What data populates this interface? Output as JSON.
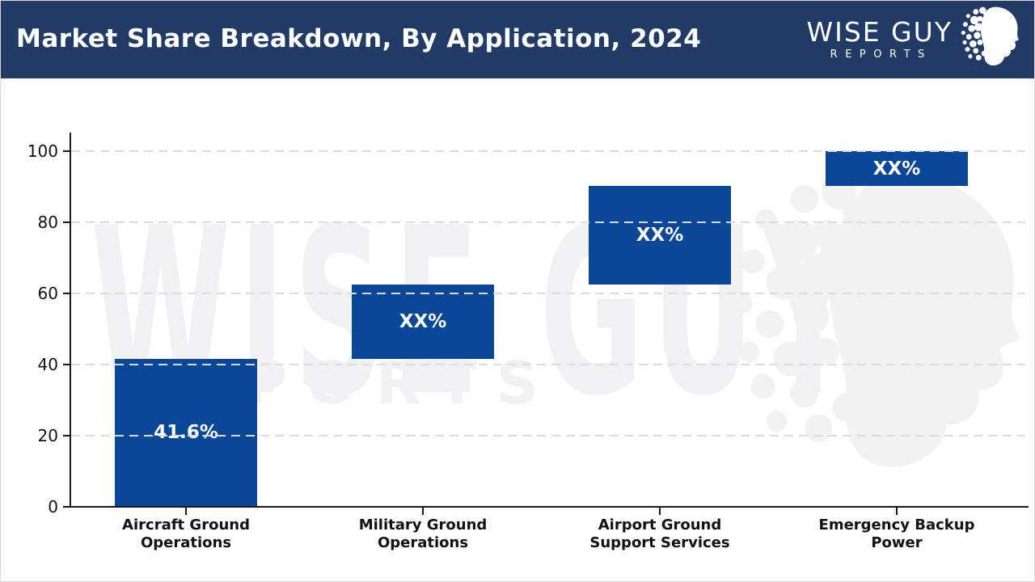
{
  "header": {
    "bg_color": "#213A66",
    "title": "Market Share Breakdown, By Application, 2024",
    "logo": {
      "line1": "WISE GUY",
      "line2": "REPORTS"
    }
  },
  "watermark": {
    "line1": "WISE GUY",
    "line2": "REPORTS"
  },
  "chart_data": {
    "type": "bar",
    "subtype": "floating-segment waterfall of cumulative market share",
    "title": "Market Share Breakdown, By Application, 2024",
    "categories": [
      "Aircraft Ground Operations",
      "Military Ground Operations",
      "Airport Ground Support Services",
      "Emergency Backup Power"
    ],
    "categories_lines": [
      [
        "Aircraft Ground",
        "Operations"
      ],
      [
        "Military Ground",
        "Operations"
      ],
      [
        "Airport Ground",
        "Support Services"
      ],
      [
        "Emergency Backup",
        "Power"
      ]
    ],
    "segments": [
      {
        "category": "Aircraft Ground Operations",
        "start": 0,
        "end": 41.6,
        "label": "41.6%"
      },
      {
        "category": "Military Ground Operations",
        "start": 41.6,
        "end": 62.5,
        "label": "XX%"
      },
      {
        "category": "Airport Ground Support Services",
        "start": 62.5,
        "end": 90.2,
        "label": "XX%"
      },
      {
        "category": "Emergency Backup Power",
        "start": 90.2,
        "end": 100,
        "label": "XX%"
      }
    ],
    "yticks": [
      0,
      20,
      40,
      60,
      80,
      100
    ],
    "ylim": [
      0,
      105
    ],
    "xlabel": "",
    "ylabel": "",
    "grid": "horizontal dashed, drawn over bars",
    "legend": "none",
    "bar_color": "#0A4798",
    "bar_label_color": "#ffffff",
    "axis_color": "#1a1a1a",
    "grid_color": "#dcdcdc",
    "header_color": "#213A66",
    "watermark_color": "#f1f1f3"
  }
}
